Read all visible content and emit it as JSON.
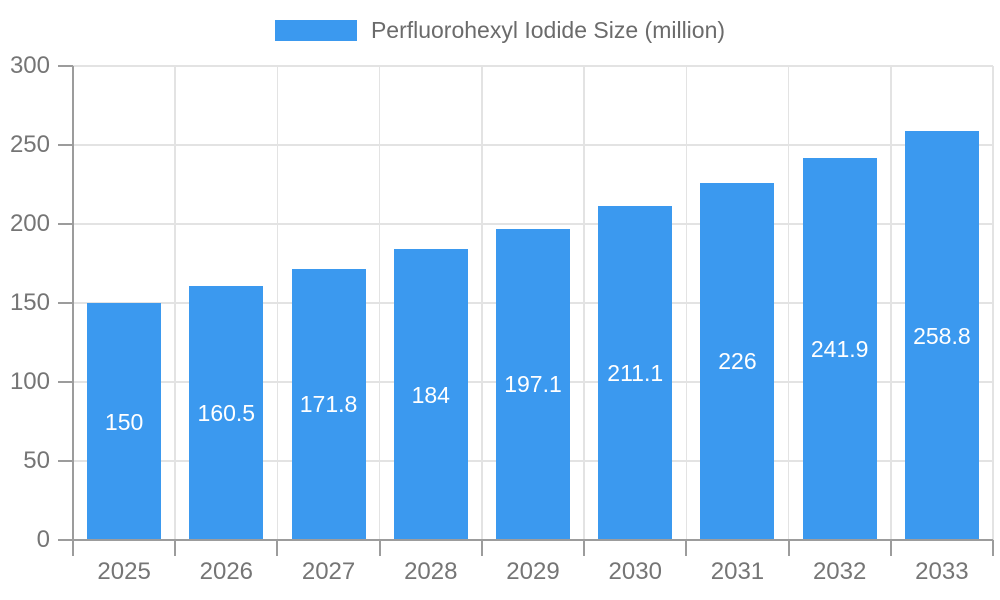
{
  "chart_data": {
    "type": "bar",
    "title": "",
    "categories": [
      "2025",
      "2026",
      "2027",
      "2028",
      "2029",
      "2030",
      "2031",
      "2032",
      "2033"
    ],
    "series": [
      {
        "name": "Perfluorohexyl Iodide Size (million)",
        "values": [
          150,
          160.5,
          171.8,
          184,
          197.1,
          211.1,
          226,
          241.9,
          258.8
        ],
        "value_labels": [
          "150",
          "160.5",
          "171.8",
          "184",
          "197.1",
          "211.1",
          "226",
          "241.9",
          "258.8"
        ]
      }
    ],
    "xlabel": "",
    "ylabel": "",
    "ylim": [
      0,
      300
    ],
    "ytick_step": 50,
    "yticks": [
      "0",
      "50",
      "100",
      "150",
      "200",
      "250",
      "300"
    ],
    "grid": true,
    "legend_position": "top-center",
    "colors": {
      "bar": "#3B99EF",
      "grid": "#E3E3E3",
      "axis": "#9C9C9C",
      "tick_label": "#757575",
      "legend_text": "#6B6B6B",
      "value_label": "#FFFFFF",
      "background": "#FFFFFF"
    }
  }
}
